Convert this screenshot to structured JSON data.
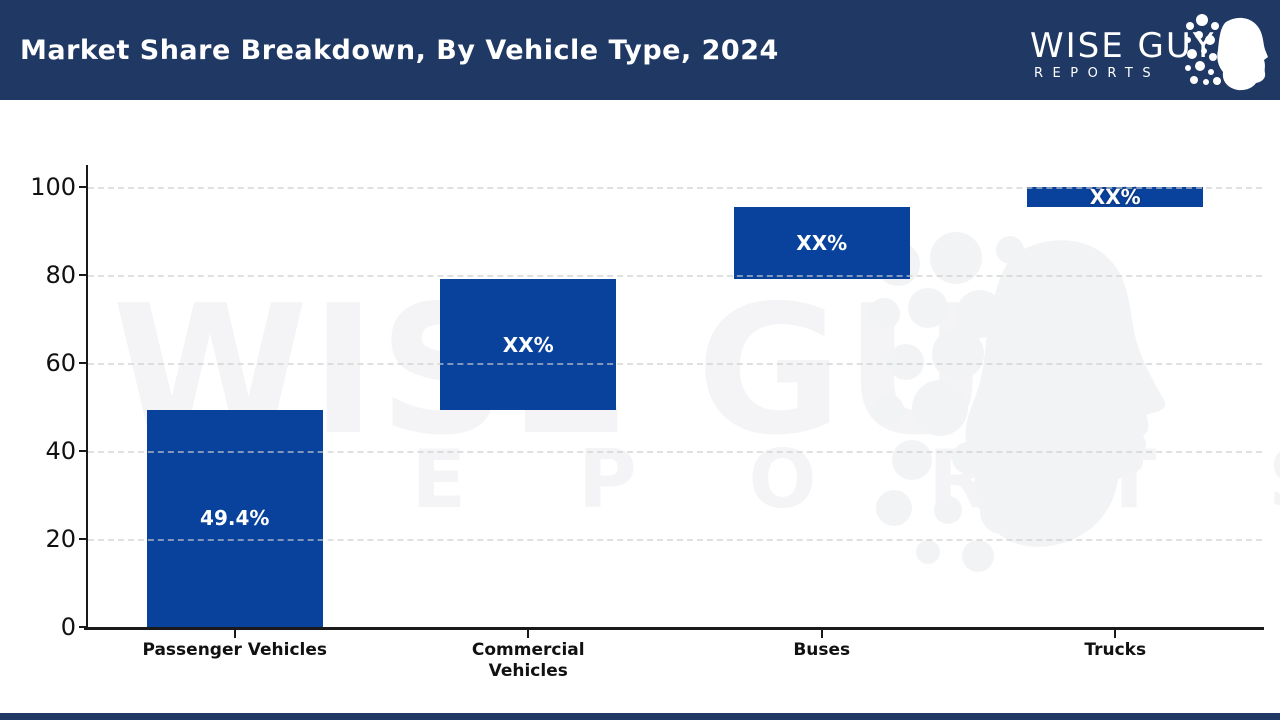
{
  "header": {
    "title": "Market Share Breakdown, By Vehicle Type, 2024",
    "bg_color": "#1f3864",
    "logo": {
      "line1": "WISE GUY",
      "line2": "REPORTS",
      "face_icon": "dotted-head-profile"
    }
  },
  "watermark": {
    "line1": "WISE GUY",
    "line2": "R E P O R T S",
    "face_icon": "dotted-head-profile",
    "color": "#f4f4f6"
  },
  "chart_data": {
    "type": "bar",
    "subtype": "floating-waterfall",
    "title": "Market Share Breakdown, By Vehicle Type, 2024",
    "categories": [
      "Passenger Vehicles",
      "Commercial\nVehicles",
      "Buses",
      "Trucks"
    ],
    "segments": [
      {
        "category": "Passenger Vehicles",
        "start": 0,
        "end": 49.4,
        "value_label": "49.4%"
      },
      {
        "category": "Commercial Vehicles",
        "start": 49.4,
        "end": 79.0,
        "value_label": "XX%"
      },
      {
        "category": "Buses",
        "start": 79.0,
        "end": 95.4,
        "value_label": "XX%"
      },
      {
        "category": "Trucks",
        "start": 95.4,
        "end": 100,
        "value_label": "XX%"
      }
    ],
    "yticks": [
      0,
      20,
      40,
      60,
      80,
      100
    ],
    "ylim": [
      0,
      105
    ],
    "xlabel": "",
    "ylabel": "",
    "grid": "dashed-horizontal",
    "legend": "none",
    "bar_color": "#08429c",
    "label_color": "#ffffff",
    "axis_color": "#1a1a1a"
  }
}
